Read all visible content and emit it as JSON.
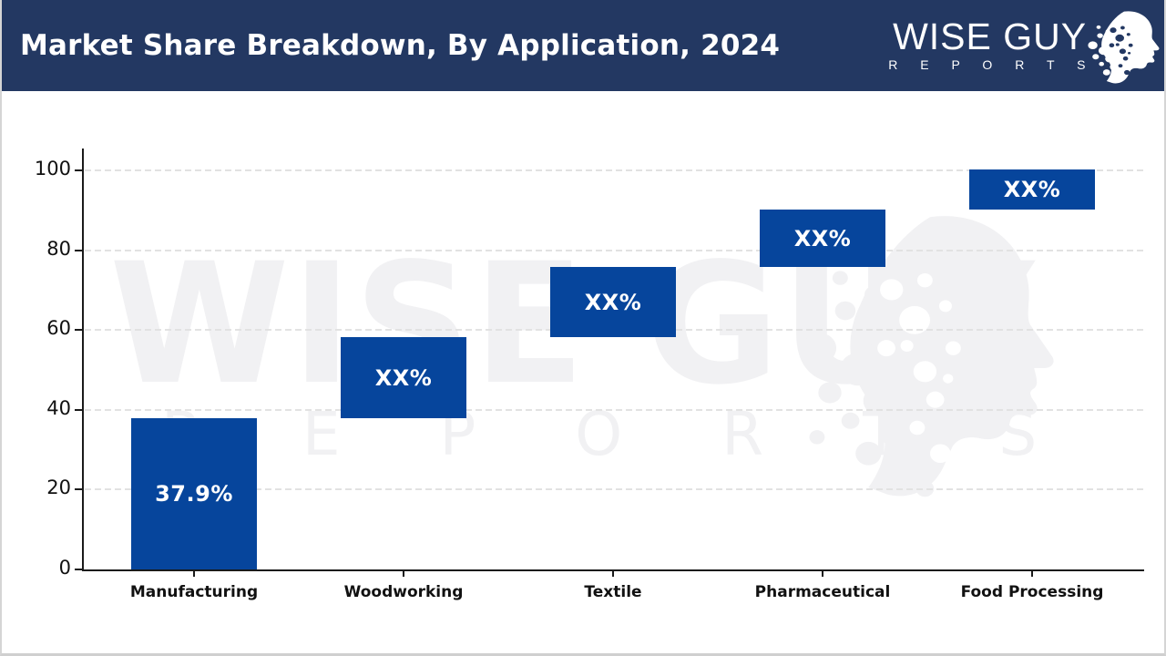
{
  "header": {
    "title": "Market Share Breakdown, By Application, 2024",
    "logo": {
      "line1": "WISE GUY",
      "line2": "R E P O R T S"
    }
  },
  "watermark": {
    "line1": "WISE GUY",
    "line2": "R E P O R T S"
  },
  "chart_data": {
    "type": "bar",
    "subtype": "waterfall",
    "title": "Market Share Breakdown, By Application, 2024",
    "categories": [
      "Manufacturing",
      "Woodworking",
      "Textile",
      "Pharmaceutical",
      "Food Processing"
    ],
    "segments": [
      {
        "category": "Manufacturing",
        "start": 0,
        "end": 37.9,
        "label": "37.9%"
      },
      {
        "category": "Woodworking",
        "start": 37.9,
        "end": 58.2,
        "label": "XX%"
      },
      {
        "category": "Textile",
        "start": 58.2,
        "end": 75.7,
        "label": "XX%"
      },
      {
        "category": "Pharmaceutical",
        "start": 75.7,
        "end": 90.1,
        "label": "XX%"
      },
      {
        "category": "Food Processing",
        "start": 90.1,
        "end": 100.2,
        "label": "XX%"
      }
    ],
    "xlabel": "",
    "ylabel": "",
    "yticks": [
      0,
      20,
      40,
      60,
      80,
      100
    ],
    "ylim": [
      0,
      105
    ],
    "grid": "horizontal-dashed",
    "legend": "none"
  },
  "colors": {
    "header_bg": "#233862",
    "bar": "#06459c",
    "grid": "#e2e2e2",
    "axis": "#1a1a1a",
    "watermark": "#f1f1f3",
    "bar_label": "#ffffff"
  }
}
